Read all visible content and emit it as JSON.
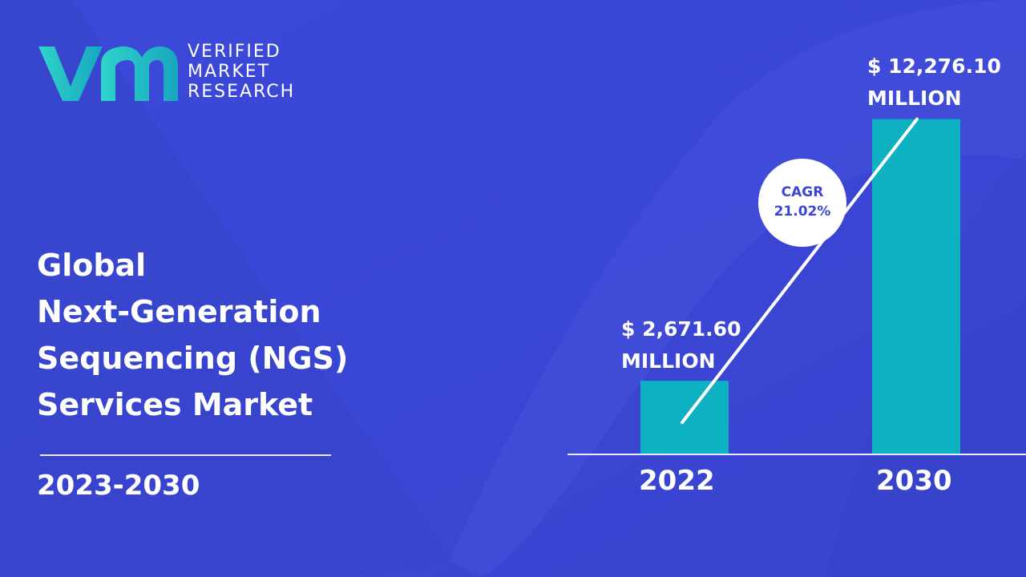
{
  "brand": {
    "line1": "VERIFIED",
    "line2": "MARKET",
    "line3": "RESEARCH",
    "logo_icon": "vmr-logo-icon",
    "colors": {
      "logo_gradient_start": "#2fd3c9",
      "logo_gradient_end": "#17a6c0"
    }
  },
  "heading": {
    "line1": "Global",
    "line2": "Next-Generation",
    "line3": "Sequencing (NGS)",
    "line4": "Services Market"
  },
  "period": "2023-2030",
  "colors": {
    "background": "#3b46d4",
    "bar": "#0db1c1",
    "text": "#ffffff"
  },
  "chart_data": {
    "type": "bar",
    "categories": [
      "2022",
      "2030"
    ],
    "values": [
      2671.6,
      12276.1
    ],
    "value_labels": [
      {
        "line1": "$ 2,671.60",
        "line2": "MILLION"
      },
      {
        "line1": "$ 12,276.10",
        "line2": "MILLION"
      }
    ],
    "annotation": {
      "line1": "CAGR",
      "line2": "21.02%"
    },
    "ylim": [
      0,
      15000
    ],
    "grid": false,
    "legend": "none"
  }
}
